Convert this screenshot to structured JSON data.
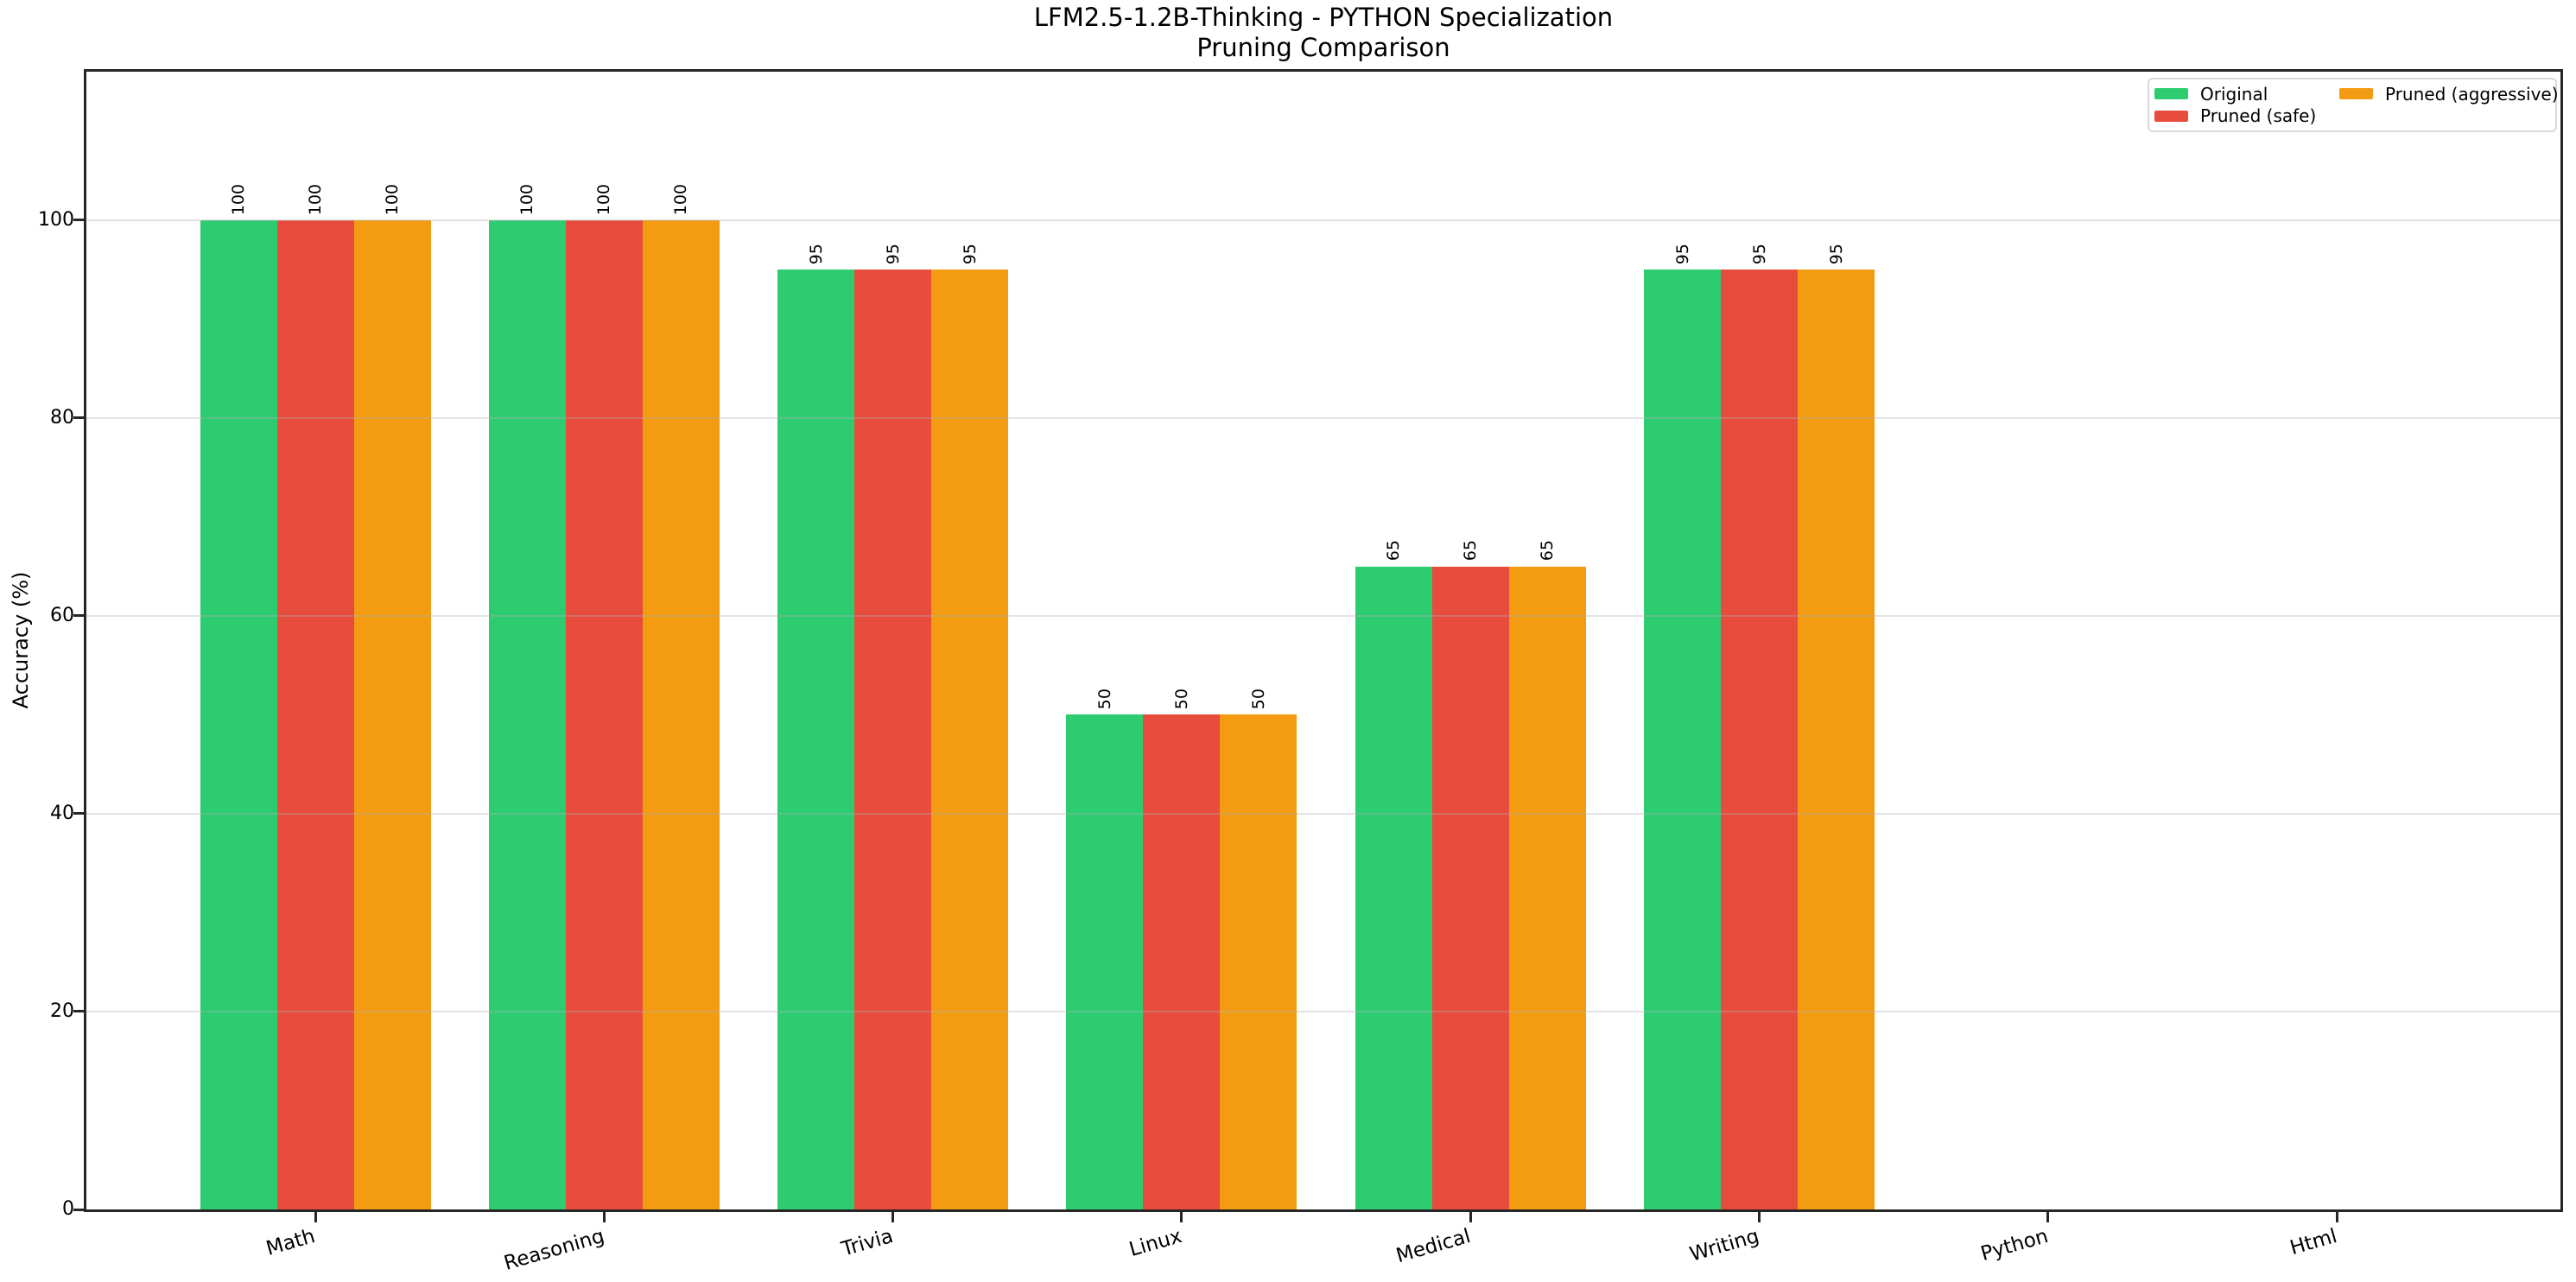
{
  "chart_data": {
    "type": "bar",
    "title_lines": [
      "LFM2.5-1.2B-Thinking - PYTHON Specialization",
      "Pruning Comparison"
    ],
    "ylabel": "Accuracy (%)",
    "categories": [
      "Math",
      "Reasoning",
      "Trivia",
      "Linux",
      "Medical",
      "Writing",
      "Python",
      "Html"
    ],
    "series": [
      {
        "name": "Original",
        "color": "#2ecc71",
        "values": [
          100,
          100,
          95,
          50,
          65,
          95,
          0,
          0
        ]
      },
      {
        "name": "Pruned (safe)",
        "color": "#e74c3c",
        "values": [
          100,
          100,
          95,
          50,
          65,
          95,
          0,
          0
        ]
      },
      {
        "name": "Pruned (aggressive)",
        "color": "#f39c12",
        "values": [
          100,
          100,
          95,
          50,
          65,
          95,
          0,
          0
        ]
      }
    ],
    "yticks": [
      0,
      20,
      40,
      60,
      80,
      100
    ],
    "ylim": [
      0,
      115
    ],
    "grid": true,
    "grid_axis": "y",
    "grid_over_bars": true,
    "legend_position": "upper right",
    "legend_columns": 2,
    "bar_value_labels": true,
    "value_label_rotation": 90,
    "xtick_rotation": 16
  },
  "colors": {
    "spine": "#262626",
    "grid": "#b0b0b0",
    "background": "#ffffff",
    "text": "#000000",
    "legend_border": "#d9d9d9"
  }
}
